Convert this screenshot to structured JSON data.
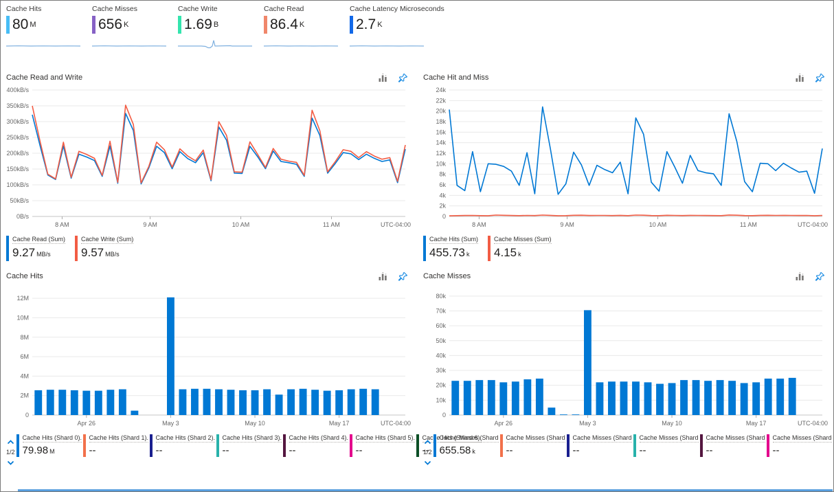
{
  "tiles": [
    {
      "label": "Cache Hits",
      "value": "80",
      "unit": "M",
      "color": "#47BDF5",
      "spark": "flat"
    },
    {
      "label": "Cache Misses",
      "value": "656",
      "unit": "K",
      "color": "#8661C5",
      "spark": "flat"
    },
    {
      "label": "Cache Write",
      "value": "1.69",
      "unit": "B",
      "color": "#34E5AE",
      "spark": "spike"
    },
    {
      "label": "Cache Read",
      "value": "86.4",
      "unit": "K",
      "color": "#F0876B",
      "spark": "flat"
    },
    {
      "label": "Cache Latency Microseconds",
      "value": "2.7",
      "unit": "K",
      "color": "#1168E8",
      "spark": "flat"
    }
  ],
  "accent_colors": {
    "blue": "#0078D4",
    "orange": "#F25C44",
    "spark_line": "#7FB0DF",
    "pin": "#1B8CE3"
  },
  "chart_data": [
    {
      "type": "line",
      "title": "Cache Read and Write",
      "ylim": [
        0,
        400
      ],
      "yticks": [
        [
          "400kB/s",
          400
        ],
        [
          "350kB/s",
          350
        ],
        [
          "300kB/s",
          300
        ],
        [
          "250kB/s",
          250
        ],
        [
          "200kB/s",
          200
        ],
        [
          "150kB/s",
          150
        ],
        [
          "100kB/s",
          100
        ],
        [
          "50kB/s",
          50
        ],
        [
          "0B/s",
          0
        ]
      ],
      "xticks": [
        [
          "8 AM",
          0.08
        ],
        [
          "9 AM",
          0.316
        ],
        [
          "10 AM",
          0.559
        ],
        [
          "11 AM",
          0.802
        ]
      ],
      "tz": "UTC-04:00",
      "series": [
        {
          "name": "Cache Read (Sum)",
          "color": "#0078D4",
          "agg_value": "9.27",
          "agg_unit": "MB/s",
          "values": [
            322,
            224,
            131,
            117,
            223,
            121,
            197,
            188,
            177,
            127,
            223,
            105,
            326,
            272,
            103,
            154,
            222,
            202,
            151,
            205,
            183,
            170,
            202,
            113,
            283,
            241,
            137,
            136,
            222,
            189,
            151,
            207,
            174,
            170,
            165,
            127,
            311,
            256,
            137,
            168,
            202,
            198,
            180,
            197,
            184,
            174,
            179,
            107,
            213
          ]
        },
        {
          "name": "Cache Write (Sum)",
          "color": "#F25C44",
          "agg_value": "9.57",
          "agg_unit": "MB/s",
          "values": [
            350,
            238,
            134,
            119,
            235,
            124,
            206,
            196,
            184,
            130,
            238,
            108,
            352,
            291,
            106,
            159,
            235,
            211,
            156,
            214,
            191,
            176,
            210,
            116,
            300,
            256,
            141,
            140,
            236,
            196,
            155,
            215,
            181,
            175,
            171,
            130,
            336,
            271,
            141,
            174,
            211,
            206,
            186,
            205,
            191,
            181,
            186,
            111,
            226
          ]
        }
      ]
    },
    {
      "type": "line",
      "title": "Cache Hit and Miss",
      "ylim": [
        0,
        24000
      ],
      "yticks": [
        [
          "24k",
          24000
        ],
        [
          "22k",
          22000
        ],
        [
          "20k",
          20000
        ],
        [
          "18k",
          18000
        ],
        [
          "16k",
          16000
        ],
        [
          "14k",
          14000
        ],
        [
          "12k",
          12000
        ],
        [
          "10k",
          10000
        ],
        [
          "8k",
          8000
        ],
        [
          "6k",
          6000
        ],
        [
          "4k",
          4000
        ],
        [
          "2k",
          2000
        ],
        [
          "0",
          0
        ]
      ],
      "xticks": [
        [
          "8 AM",
          0.08
        ],
        [
          "9 AM",
          0.316
        ],
        [
          "10 AM",
          0.559
        ],
        [
          "11 AM",
          0.802
        ]
      ],
      "tz": "UTC-04:00",
      "series": [
        {
          "name": "Cache Hits (Sum)",
          "color": "#0078D4",
          "agg_value": "455.73",
          "agg_unit": "k",
          "values": [
            20300,
            5900,
            4900,
            12300,
            4700,
            10000,
            9900,
            9500,
            8600,
            5900,
            12100,
            4300,
            20800,
            12900,
            4200,
            6200,
            12200,
            9800,
            5900,
            9700,
            8900,
            8300,
            10300,
            4300,
            18700,
            15600,
            6500,
            4800,
            12300,
            9400,
            6300,
            11600,
            8700,
            8300,
            8100,
            5900,
            19500,
            14200,
            6600,
            4700,
            10100,
            10000,
            8700,
            10100,
            9200,
            8400,
            8600,
            4400,
            12900
          ]
        },
        {
          "name": "Cache Misses (Sum)",
          "color": "#F25C44",
          "agg_value": "4.15",
          "agg_unit": "k",
          "values": [
            120,
            150,
            180,
            200,
            160,
            140,
            260,
            220,
            180,
            150,
            200,
            170,
            260,
            210,
            140,
            160,
            220,
            240,
            180,
            200,
            190,
            170,
            210,
            150,
            260,
            230,
            170,
            160,
            220,
            200,
            170,
            210,
            190,
            180,
            170,
            150,
            280,
            240,
            170,
            160,
            210,
            220,
            190,
            210,
            200,
            180,
            190,
            140,
            200
          ]
        }
      ]
    },
    {
      "type": "bar",
      "title": "Cache Hits",
      "ylim": [
        0,
        13
      ],
      "yticks": [
        [
          "12M",
          12
        ],
        [
          "10M",
          10
        ],
        [
          "8M",
          8
        ],
        [
          "6M",
          6
        ],
        [
          "4M",
          4
        ],
        [
          "2M",
          2
        ],
        [
          "0",
          0
        ]
      ],
      "xticks": [
        [
          "Apr 26",
          4
        ],
        [
          "May 3",
          11
        ],
        [
          "May 10",
          18
        ],
        [
          "May 17",
          25
        ]
      ],
      "tz": "UTC-04:00",
      "bar_color": "#0078D4",
      "values": [
        2.55,
        2.6,
        2.6,
        2.55,
        2.5,
        2.5,
        2.6,
        2.65,
        0.45,
        0,
        0,
        12.1,
        2.65,
        2.7,
        2.7,
        2.65,
        2.6,
        2.55,
        2.55,
        2.65,
        2.1,
        2.65,
        2.7,
        2.6,
        2.5,
        2.55,
        2.65,
        2.7,
        2.65,
        0,
        0
      ],
      "pagination": "1/2",
      "legend": [
        {
          "name": "Cache Hits (Shard 0)...",
          "color": "#0078D4",
          "value": "79.98",
          "unit": "M"
        },
        {
          "name": "Cache Hits (Shard 1)...",
          "color": "#F2714B",
          "value": "--",
          "unit": ""
        },
        {
          "name": "Cache Hits (Shard 2)...",
          "color": "#1A1F8F",
          "value": "--",
          "unit": ""
        },
        {
          "name": "Cache Hits (Shard 3)...",
          "color": "#28B2AB",
          "value": "--",
          "unit": ""
        },
        {
          "name": "Cache Hits (Shard 4)...",
          "color": "#541640",
          "value": "--",
          "unit": ""
        },
        {
          "name": "Cache Hits (Shard 5)...",
          "color": "#E3008C",
          "value": "--",
          "unit": ""
        },
        {
          "name": "Cache Hits (Shard 6)...",
          "color": "#0B4F26",
          "value": "--",
          "unit": ""
        }
      ]
    },
    {
      "type": "bar",
      "title": "Cache Misses",
      "ylim": [
        0,
        85
      ],
      "yticks": [
        [
          "80k",
          80
        ],
        [
          "70k",
          70
        ],
        [
          "60k",
          60
        ],
        [
          "50k",
          50
        ],
        [
          "40k",
          40
        ],
        [
          "30k",
          30
        ],
        [
          "20k",
          20
        ],
        [
          "10k",
          10
        ],
        [
          "0",
          0
        ]
      ],
      "xticks": [
        [
          "Apr 26",
          4
        ],
        [
          "May 3",
          11
        ],
        [
          "May 10",
          18
        ],
        [
          "May 17",
          25
        ]
      ],
      "tz": "UTC-04:00",
      "bar_color": "#0078D4",
      "values": [
        23,
        23,
        23.5,
        23.5,
        22,
        22.5,
        24,
        24.5,
        5,
        0.4,
        0.4,
        70.5,
        22,
        22.5,
        22.5,
        22.5,
        22,
        21,
        21.5,
        23.5,
        23.5,
        23,
        23.5,
        23,
        21.5,
        22,
        24.5,
        24.5,
        25,
        0,
        0
      ],
      "pagination": "1/2",
      "legend": [
        {
          "name": "Cache Misses (Shard ...",
          "color": "#0078D4",
          "value": "655.58",
          "unit": "k"
        },
        {
          "name": "Cache Misses (Shard ...",
          "color": "#F2714B",
          "value": "--",
          "unit": ""
        },
        {
          "name": "Cache Misses (Shard ...",
          "color": "#1A1F8F",
          "value": "--",
          "unit": ""
        },
        {
          "name": "Cache Misses (Shard ...",
          "color": "#28B2AB",
          "value": "--",
          "unit": ""
        },
        {
          "name": "Cache Misses (Shard ...",
          "color": "#541640",
          "value": "--",
          "unit": ""
        },
        {
          "name": "Cache Misses (Shard ...",
          "color": "#E3008C",
          "value": "--",
          "unit": ""
        },
        {
          "name": "Cache Misses (Shard ...",
          "color": "#0B4F26",
          "value": "--",
          "unit": ""
        }
      ]
    }
  ]
}
